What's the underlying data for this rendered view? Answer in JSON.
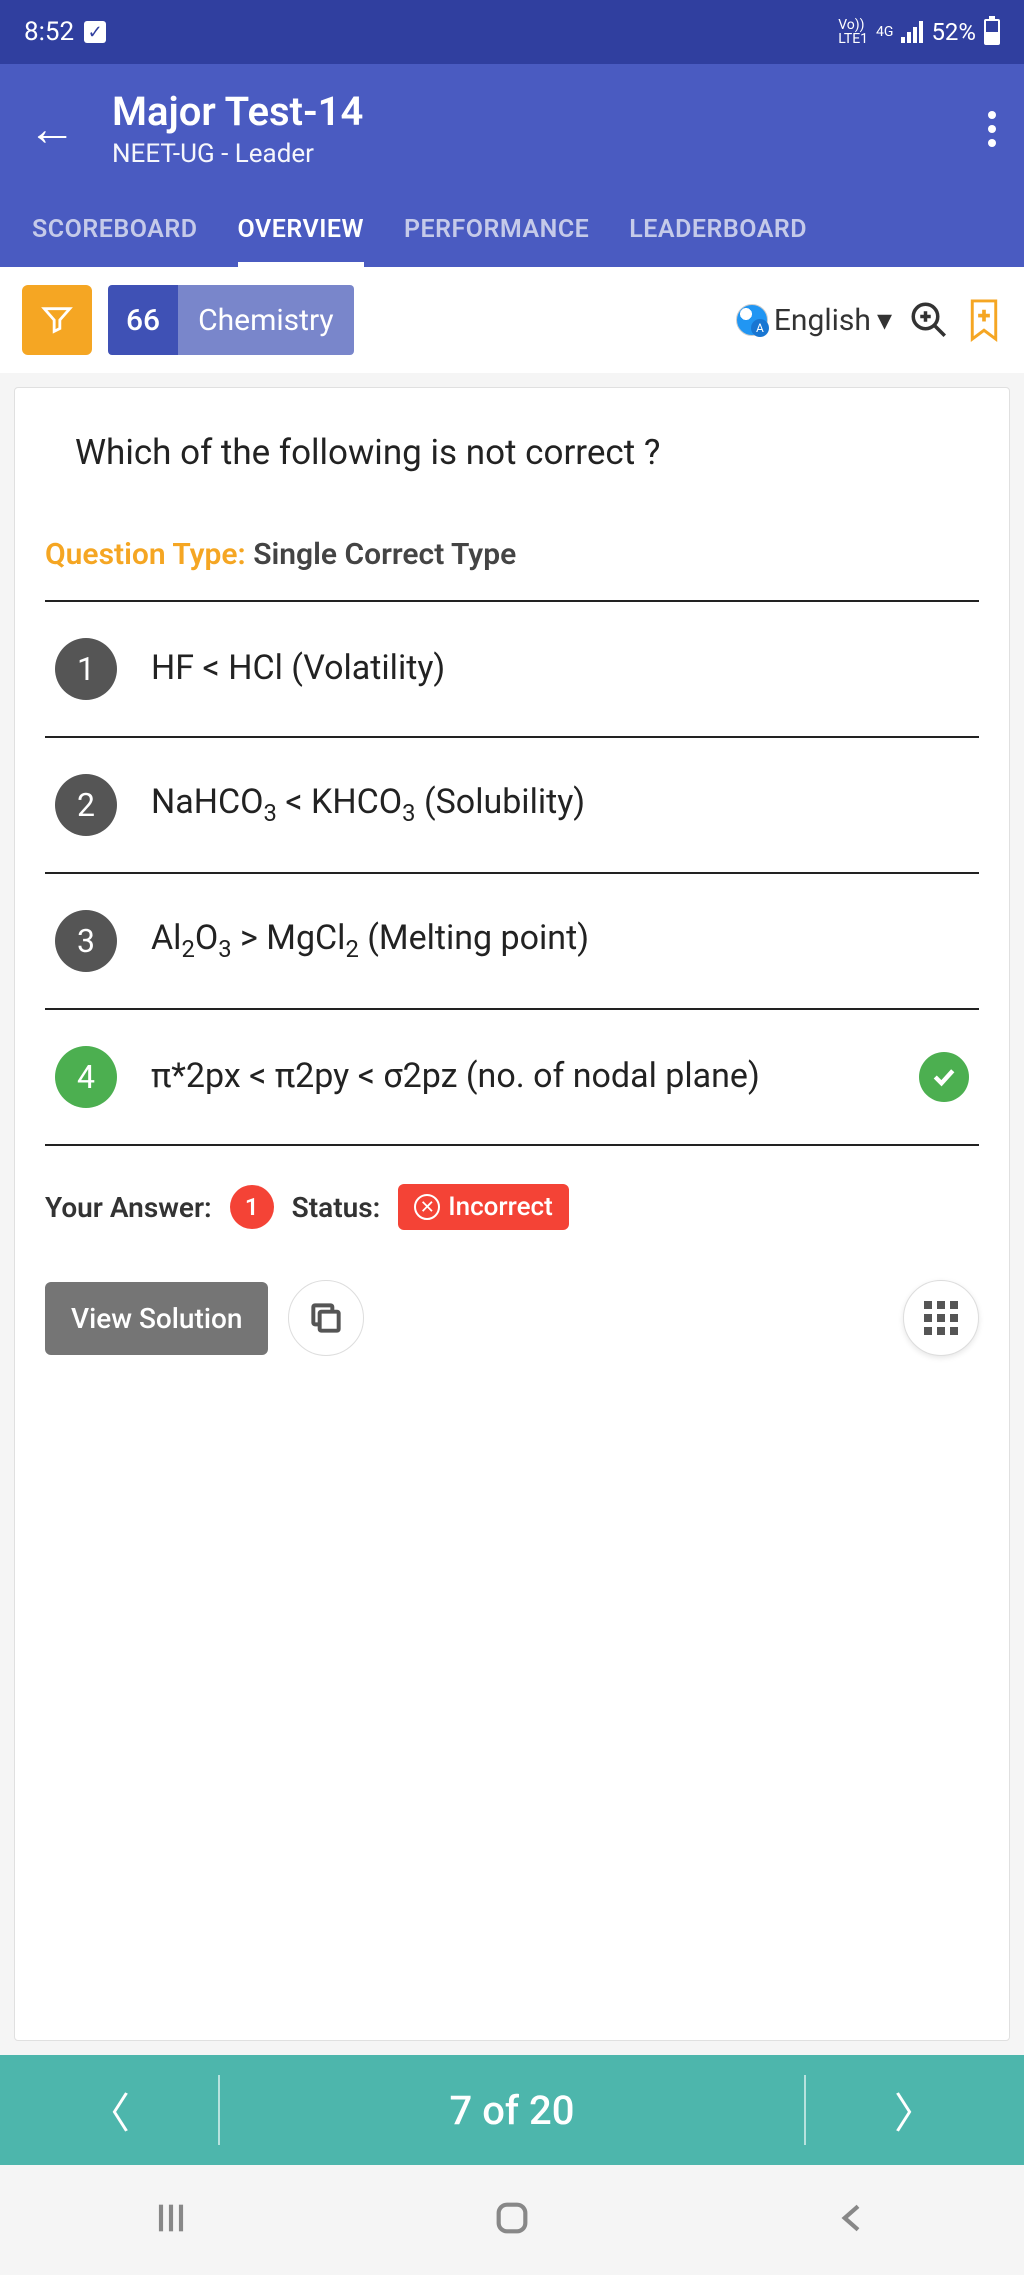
{
  "status": {
    "time": "8:52",
    "net1": "Vo))",
    "net2": "LTE1",
    "net3": "4G",
    "battery": "52%"
  },
  "header": {
    "title": "Major Test-14",
    "subtitle": "NEET-UG - Leader"
  },
  "tabs": [
    "SCOREBOARD",
    "OVERVIEW",
    "PERFORMANCE",
    "LEADERBOARD"
  ],
  "active_tab": 1,
  "toolbar": {
    "chip_num": "66",
    "chip_label": "Chemistry",
    "language": "English"
  },
  "question": {
    "text": "Which of the following is not correct ?",
    "type_label": "Question Type:",
    "type_value": "Single Correct Type",
    "options": [
      {
        "n": "1",
        "html": "HF < HCl (Volatility)",
        "correct": false
      },
      {
        "n": "2",
        "html": "NaHCO<sub>3</sub> < KHCO<sub>3</sub> (Solubility)",
        "correct": false
      },
      {
        "n": "3",
        "html": "Al<sub>2</sub>O<sub>3</sub> > MgCl<sub>2</sub> (Melting point)",
        "correct": false
      },
      {
        "n": "4",
        "html": "π*2px < π2py < σ2pz (no. of nodal plane)",
        "correct": true
      }
    ],
    "your_answer_label": "Your Answer:",
    "your_answer": "1",
    "status_label": "Status:",
    "status_value": "Incorrect",
    "view_solution": "View Solution"
  },
  "footer": {
    "position": "7 of 20"
  },
  "colors": {
    "status_bar": "#303f9f",
    "header": "#4a5bc1",
    "filter": "#f5a623",
    "chip_dark": "#3f51b5",
    "chip_light": "#7986cb",
    "correct": "#4caf50",
    "incorrect": "#f44336",
    "footer": "#4db6ac"
  }
}
